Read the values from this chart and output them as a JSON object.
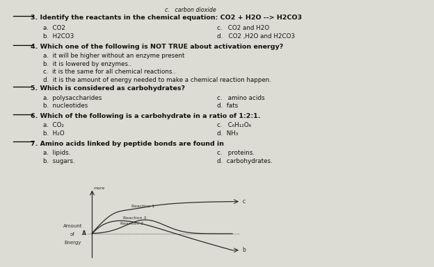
{
  "bg_color": "#dcdcd4",
  "text_color": "#111111",
  "header": "c.   carbon dioxide",
  "questions": [
    {
      "num": "3.",
      "text": "Identify the reactants in the chemical equation: CO2 + H2O --> H2CO3",
      "options_left": [
        "a.  CO2",
        "b.  H2CO3"
      ],
      "options_right": [
        "c.   CO2 and H2O",
        "d.   CO2 ,H2O and H2CO3"
      ]
    },
    {
      "num": "4.",
      "text": "Which one of the following is NOT TRUE about activation energy?",
      "options_left": [
        "a.  it will be higher without an enzyme present",
        "b.  it is lowered by enzymes..",
        "c.  it is the same for all chemical reactions..",
        "d.  it is the amount of energy needed to make a chemical reaction happen."
      ],
      "options_right": []
    },
    {
      "num": "5.",
      "text": "Which is considered as carbohydrates?",
      "options_left": [
        "a.  polysaccharides",
        "b.  nucleotides"
      ],
      "options_right": [
        "c.   amino acids",
        "d.  fats"
      ]
    },
    {
      "num": "6.",
      "text": "Which of the following is a carbohydrate in a ratio of 1:2:1.",
      "options_left": [
        "a.  CO₂",
        "b.  H₂O"
      ],
      "options_right": [
        "c.   C₆H₁₂O₆",
        "d.  NH₃"
      ]
    },
    {
      "num": "7.",
      "text": "Amino acids linked by peptide bonds are found in",
      "options_left": [
        "a.  lipids.",
        "b.  sugars."
      ],
      "options_right": [
        "c.   proteins.",
        "d.  carbohydrates."
      ]
    }
  ],
  "graph": {
    "ylabel_lines": [
      "Amount",
      "of",
      "Energy"
    ],
    "y_top_label": "more",
    "label_c": "c",
    "label_b": "b",
    "label_a": "A",
    "reactions": [
      "Reaction 1",
      "Reaction 2",
      "Reaction 3"
    ],
    "line_color": "#2a2a2a",
    "dot_color": "#2a2a2a"
  }
}
